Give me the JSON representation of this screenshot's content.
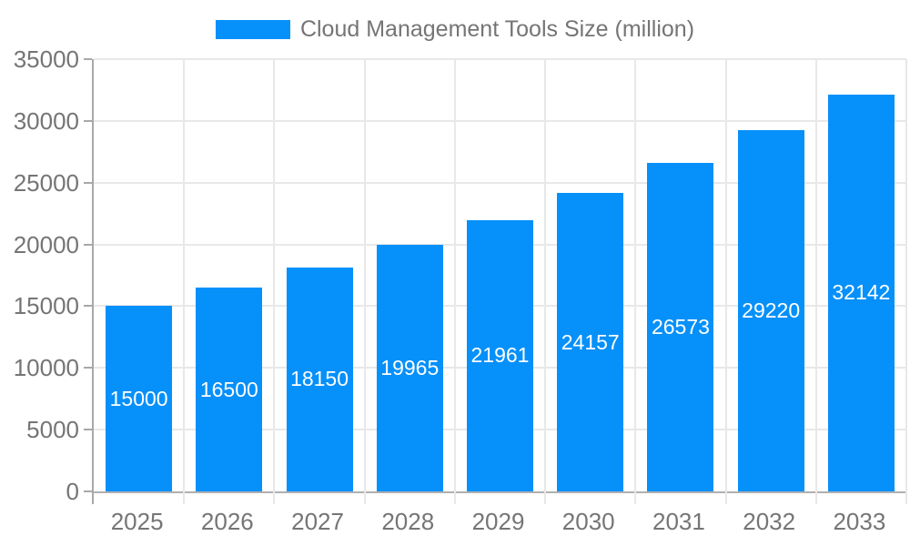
{
  "chart_data": {
    "type": "bar",
    "title": "Cloud Management Tools Size (million)",
    "categories": [
      "2025",
      "2026",
      "2027",
      "2028",
      "2029",
      "2030",
      "2031",
      "2032",
      "2033"
    ],
    "values": [
      15000,
      16500,
      18150,
      19965,
      21961,
      24157,
      26573,
      29220,
      32142
    ],
    "xlabel": "",
    "ylabel": "",
    "ylim": [
      0,
      35000
    ],
    "yticks": [
      0,
      5000,
      10000,
      15000,
      20000,
      25000,
      30000,
      35000
    ],
    "grid": true,
    "legend_position": "top",
    "value_labels": "inside-center",
    "colors": {
      "bar_fill": "#0690fa",
      "grid_line": "#e8e8e8",
      "axis_line": "#a8a8a8",
      "axis_text": "#757575",
      "value_text": "#ffffff"
    }
  }
}
